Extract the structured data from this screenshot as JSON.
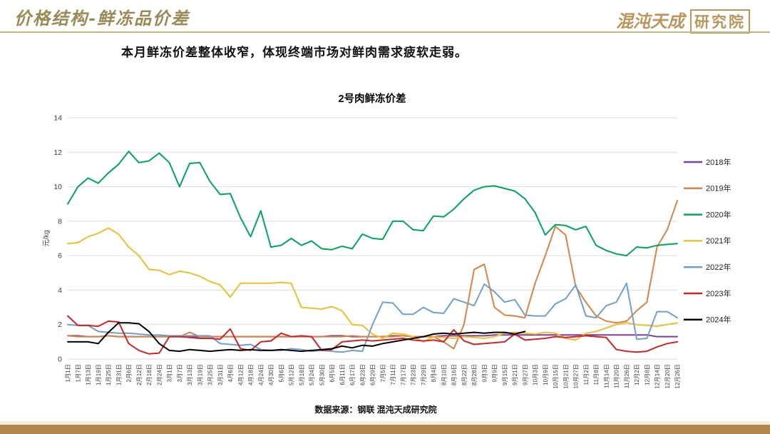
{
  "header": {
    "title": "价格结构-鲜冻品价差",
    "logo_brand": "混沌天成",
    "logo_suffix": "研究院",
    "subtitle": "本月鲜冻价差整体收窄，体现终端市场对鲜肉需求疲软走弱。"
  },
  "footer": {
    "source": "数据来源：钢联 混沌天成研究院"
  },
  "colors": {
    "title_gold": "#9a8a55",
    "rule_gold": "#c8b87e",
    "logo_gold": "#b9975c",
    "footer_bar": "#b1874e",
    "footer_band": "#f6f0da",
    "gridline": "#dbdbdb",
    "axis_text": "#3f3f3f"
  },
  "chart_data": {
    "type": "line",
    "title": "2号肉鲜冻价差",
    "xlabel": "",
    "ylabel": "元/kg",
    "ylim": [
      0,
      14
    ],
    "ytick_step": 2,
    "grid": true,
    "legend_position": "right",
    "categories": [
      "1月1日",
      "1月7日",
      "1月13日",
      "1月19日",
      "1月25日",
      "1月31日",
      "2月6日",
      "2月12日",
      "2月18日",
      "2月24日",
      "3月1日",
      "3月7日",
      "3月13日",
      "3月19日",
      "3月25日",
      "3月31日",
      "4月6日",
      "4月12日",
      "4月18日",
      "4月24日",
      "4月30日",
      "5月6日",
      "5月12日",
      "5月18日",
      "5月24日",
      "5月30日",
      "6月5日",
      "6月11日",
      "6月17日",
      "6月23日",
      "6月29日",
      "7月5日",
      "7月11日",
      "7月17日",
      "7月23日",
      "7月29日",
      "8月4日",
      "8月10日",
      "8月16日",
      "8月22日",
      "8月28日",
      "9月3日",
      "9月9日",
      "9月15日",
      "9月21日",
      "9月27日",
      "10月3日",
      "10月9日",
      "10月15日",
      "10月21日",
      "10月27日",
      "11月2日",
      "11月8日",
      "11月14日",
      "11月20日",
      "11月26日",
      "12月2日",
      "12月8日",
      "12月14日",
      "12月20日",
      "12月26日"
    ],
    "series": [
      {
        "name": "2018年",
        "color": "#7b3fa2",
        "values": [
          1.35,
          1.35,
          1.3,
          1.3,
          1.35,
          1.3,
          1.3,
          1.3,
          1.3,
          1.3,
          1.3,
          1.3,
          1.3,
          1.3,
          1.3,
          1.3,
          1.3,
          1.3,
          1.3,
          1.3,
          1.3,
          1.3,
          1.3,
          1.3,
          1.3,
          1.3,
          1.35,
          1.35,
          1.3,
          1.3,
          1.3,
          1.3,
          1.35,
          1.35,
          1.3,
          1.3,
          1.3,
          1.35,
          1.35,
          1.35,
          1.35,
          1.35,
          1.4,
          1.4,
          1.4,
          1.4,
          1.4,
          1.4,
          1.4,
          1.4,
          1.4,
          1.4,
          1.4,
          1.4,
          1.4,
          1.4,
          1.4,
          1.4,
          1.3,
          1.3,
          1.3
        ]
      },
      {
        "name": "2019年",
        "color": "#db8344",
        "values": [
          1.35,
          1.3,
          1.3,
          1.3,
          1.35,
          1.3,
          1.3,
          1.3,
          1.3,
          1.3,
          1.3,
          1.3,
          1.55,
          1.3,
          1.3,
          1.3,
          1.3,
          1.3,
          1.3,
          1.3,
          1.3,
          1.3,
          1.3,
          1.3,
          1.3,
          1.3,
          1.3,
          1.3,
          1.35,
          1.3,
          1.3,
          1.3,
          1.3,
          1.35,
          1.3,
          1.3,
          1.3,
          1.0,
          0.6,
          2.0,
          5.2,
          5.5,
          3.0,
          2.55,
          2.5,
          2.4,
          4.4,
          6.0,
          7.7,
          7.2,
          4.2,
          3.3,
          2.5,
          2.2,
          2.1,
          2.2,
          2.8,
          3.3,
          6.5,
          7.5,
          9.2
        ]
      },
      {
        "name": "2020年",
        "color": "#00a65c",
        "values": [
          9.0,
          10.0,
          10.5,
          10.2,
          10.8,
          11.3,
          12.05,
          11.4,
          11.5,
          11.95,
          11.4,
          10.0,
          11.35,
          11.4,
          10.3,
          9.55,
          9.6,
          8.2,
          7.1,
          8.6,
          6.5,
          6.6,
          7.0,
          6.6,
          6.85,
          6.4,
          6.35,
          6.55,
          6.4,
          7.25,
          7.0,
          6.95,
          8.0,
          8.0,
          7.5,
          7.45,
          8.3,
          8.25,
          8.7,
          9.3,
          9.8,
          10.0,
          10.05,
          9.9,
          9.75,
          9.3,
          8.5,
          7.2,
          7.8,
          7.75,
          7.5,
          7.7,
          6.6,
          6.3,
          6.1,
          6.0,
          6.5,
          6.45,
          6.6,
          6.65,
          6.7
        ]
      },
      {
        "name": "2021年",
        "color": "#edc02f",
        "values": [
          6.7,
          6.75,
          7.1,
          7.3,
          7.6,
          7.25,
          6.5,
          6.0,
          5.2,
          5.15,
          4.9,
          5.1,
          5.0,
          4.8,
          4.5,
          4.3,
          3.6,
          4.4,
          4.4,
          4.4,
          4.4,
          4.45,
          4.4,
          3.0,
          2.95,
          2.9,
          3.05,
          2.8,
          2.0,
          1.95,
          1.45,
          1.2,
          1.5,
          1.45,
          1.3,
          1.0,
          1.3,
          1.25,
          1.2,
          1.3,
          1.25,
          1.2,
          1.3,
          1.5,
          1.55,
          1.5,
          1.45,
          1.55,
          1.5,
          1.2,
          1.1,
          1.5,
          1.6,
          1.8,
          2.0,
          2.1,
          2.0,
          1.95,
          1.9,
          2.0,
          2.1
        ]
      },
      {
        "name": "2022年",
        "color": "#6fa0cb",
        "values": [
          2.0,
          1.95,
          1.95,
          1.6,
          1.55,
          1.5,
          1.5,
          1.45,
          1.4,
          1.4,
          1.35,
          1.35,
          1.35,
          1.35,
          1.35,
          0.9,
          0.85,
          0.8,
          0.85,
          0.55,
          0.5,
          0.5,
          0.6,
          0.55,
          0.45,
          0.5,
          0.45,
          0.4,
          0.5,
          0.45,
          2.0,
          3.3,
          3.25,
          2.6,
          2.6,
          3.0,
          2.7,
          2.65,
          3.5,
          3.3,
          3.1,
          4.35,
          3.9,
          3.3,
          3.45,
          2.55,
          2.5,
          2.5,
          3.2,
          3.5,
          4.3,
          2.5,
          2.4,
          3.1,
          3.3,
          4.4,
          1.15,
          1.2,
          2.75,
          2.75,
          2.4
        ]
      },
      {
        "name": "2023年",
        "color": "#cf2525",
        "values": [
          2.5,
          1.95,
          1.95,
          1.9,
          2.2,
          2.15,
          0.9,
          0.5,
          0.3,
          0.35,
          1.3,
          1.3,
          1.25,
          1.2,
          1.2,
          1.15,
          1.75,
          0.6,
          0.5,
          1.0,
          1.05,
          1.5,
          1.3,
          1.35,
          1.3,
          0.5,
          0.55,
          1.0,
          1.05,
          1.1,
          1.05,
          1.1,
          1.15,
          1.2,
          1.1,
          1.05,
          1.1,
          1.0,
          1.7,
          1.05,
          0.85,
          0.9,
          0.95,
          1.0,
          1.45,
          1.1,
          1.15,
          1.2,
          1.3,
          1.25,
          1.3,
          1.35,
          1.3,
          1.25,
          0.55,
          0.45,
          0.4,
          0.45,
          0.7,
          0.9,
          1.0
        ]
      },
      {
        "name": "2024年",
        "color": "#000000",
        "values": [
          1.0,
          1.0,
          1.0,
          0.9,
          1.55,
          2.1,
          2.1,
          2.05,
          1.6,
          0.9,
          0.5,
          0.45,
          0.55,
          0.5,
          0.45,
          0.5,
          0.55,
          0.5,
          0.55,
          0.5,
          0.5,
          0.55,
          0.5,
          0.45,
          0.5,
          0.55,
          0.6,
          0.75,
          0.65,
          0.8,
          0.75,
          0.9,
          1.0,
          1.1,
          1.2,
          1.3,
          1.45,
          1.5,
          1.45,
          1.5,
          1.55,
          1.5,
          1.55,
          1.55,
          1.45,
          1.6
        ]
      }
    ]
  }
}
